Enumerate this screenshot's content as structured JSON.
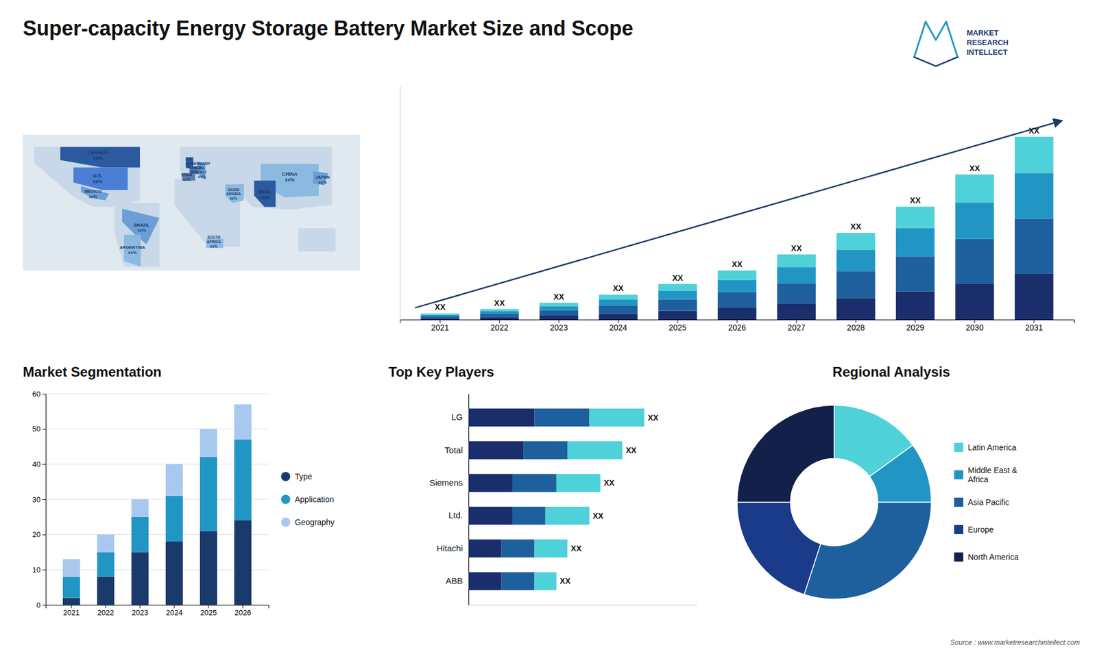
{
  "chart_data": [
    {
      "type": "map",
      "annotations": [
        "CANADA\nxx%",
        "U.S.\nxx%",
        "MEXICO\nxx%",
        "BRAZIL\nxx%",
        "ARGENTINA\nxx%",
        "U.K.\nxx%",
        "FRANCE\nxx%",
        "SPAIN\nxx%",
        "GERMANY\nxx%",
        "ITALY\nxx%",
        "SAUDI\nARABIA\nxx%",
        "SOUTH\nAFRICA\nxx%",
        "CHINA\nxx%",
        "INDIA\nxx%",
        "JAPAN\nxx%"
      ]
    },
    {
      "type": "bar",
      "title": "Super-capacity Energy Storage Battery Market Size and Scope",
      "stacked": true,
      "categories": [
        "2021",
        "2022",
        "2023",
        "2024",
        "2025",
        "2026",
        "2027",
        "2028",
        "2029",
        "2030",
        "2031"
      ],
      "series": [
        {
          "color": "#1a2e6b",
          "values": [
            1,
            1.8,
            3,
            4.5,
            6.5,
            9,
            12,
            16,
            21,
            27,
            34
          ]
        },
        {
          "color": "#1e5f9e",
          "values": [
            1.5,
            2.5,
            4,
            6,
            8.5,
            11.5,
            15,
            20,
            26,
            33,
            41
          ]
        },
        {
          "color": "#2196c4",
          "values": [
            1,
            2,
            3,
            4.5,
            6.5,
            9,
            12,
            16,
            21,
            27,
            34
          ]
        },
        {
          "color": "#4fd1d9",
          "values": [
            1,
            1.5,
            2.5,
            3.5,
            5,
            7,
            9.5,
            12.5,
            16,
            21,
            27
          ]
        }
      ],
      "ylim": [
        0,
        174.08
      ],
      "tick_labels": "x",
      "annotations": [
        "XX",
        "XX",
        "XX",
        "XX",
        "XX",
        "XX",
        "XX",
        "XX",
        "XX",
        "XX",
        "XX"
      ]
    },
    {
      "type": "bar",
      "title": "Market Segmentation",
      "stacked": true,
      "categories": [
        "2021",
        "2022",
        "2023",
        "2024",
        "2025",
        "2026"
      ],
      "series": [
        {
          "name": "Type",
          "color": "#1a3a6b",
          "values": [
            2,
            8,
            15,
            18,
            21,
            24
          ]
        },
        {
          "name": "Application",
          "color": "#2196c4",
          "values": [
            6,
            7,
            10,
            13,
            21,
            23
          ]
        },
        {
          "name": "Geography",
          "color": "#a8c8f0",
          "values": [
            5,
            5,
            5,
            9,
            8,
            10
          ]
        }
      ],
      "ylim": [
        0,
        60
      ],
      "yticks": [
        0,
        10,
        20,
        30,
        40,
        50,
        60
      ],
      "grid": true,
      "legend": "right"
    },
    {
      "type": "bar",
      "title": "Top Key Players",
      "orientation": "horizontal",
      "stacked": true,
      "categories": [
        "LG",
        "Total",
        "Siemens",
        "Ltd.",
        "Hitachi",
        "ABB"
      ],
      "series": [
        {
          "color": "#1a2e6b",
          "values": [
            3,
            2.5,
            2,
            2,
            1.5,
            1.5
          ]
        },
        {
          "color": "#1e5f9e",
          "values": [
            2.5,
            2,
            2,
            1.5,
            1.5,
            1.5
          ]
        },
        {
          "color": "#4fd1d9",
          "values": [
            2.5,
            2.5,
            2,
            2,
            1.5,
            1
          ]
        }
      ],
      "xlim": [
        0,
        10.4
      ],
      "tick_labels": "y",
      "annotations": [
        "XX",
        "XX",
        "XX",
        "XX",
        "XX",
        "XX"
      ]
    },
    {
      "type": "pie",
      "title": "Regional Analysis",
      "categories": [
        "Latin America",
        "Middle East &\nAfrica",
        "Asia Pacific",
        "Europe",
        "North America"
      ],
      "values": [
        15,
        10,
        30,
        20,
        25
      ],
      "colors": [
        "#4fd1d9",
        "#2196c4",
        "#1e5f9e",
        "#1a3a8a",
        "#12204a"
      ],
      "legend": "right",
      "annotations": [
        "Source : www.marketresearchintellect.com",
        "MARKET\nRESEARCH\nINTELLECT"
      ]
    }
  ]
}
